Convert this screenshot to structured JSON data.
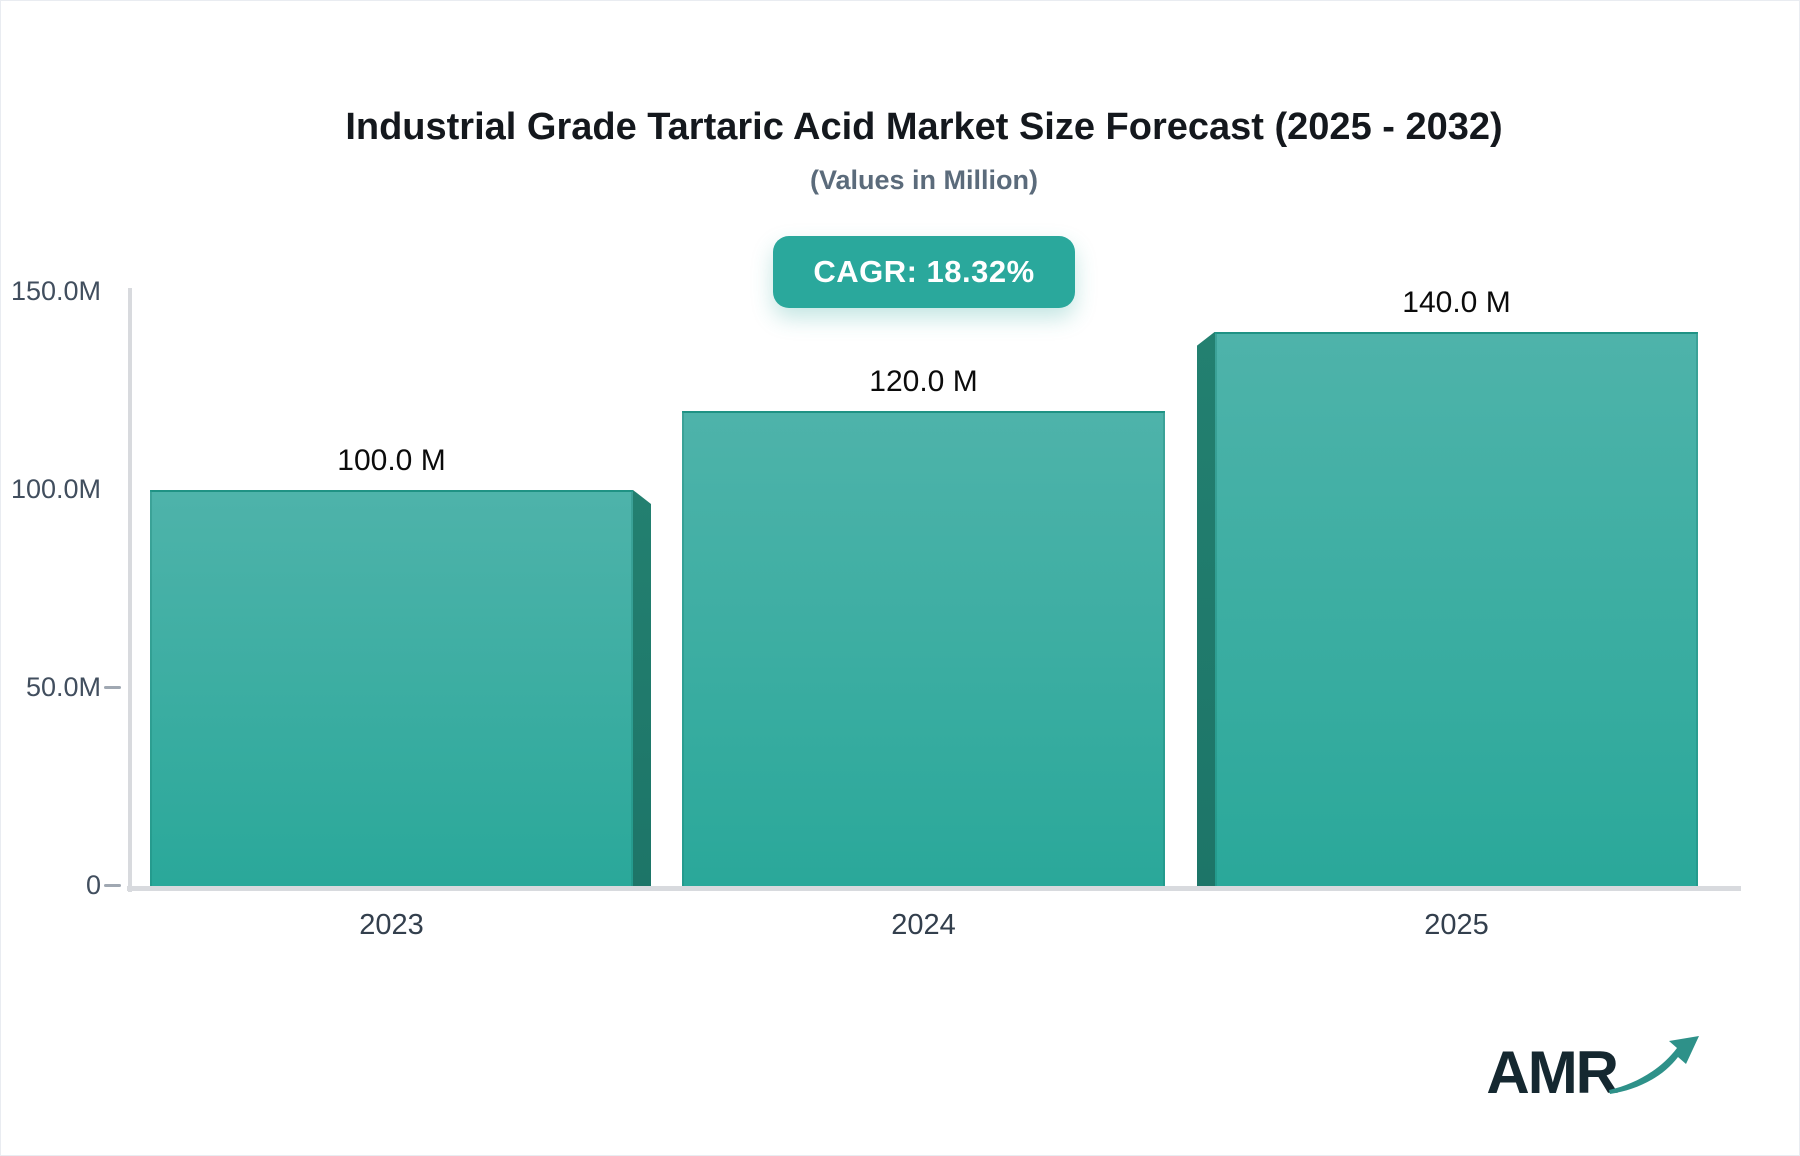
{
  "header": {
    "title": "Industrial Grade Tartaric Acid Market Size Forecast (2025 - 2032)",
    "subtitle": "(Values in Million)"
  },
  "badge": {
    "label": "CAGR: 18.32%",
    "bg_color": "#2aa89c",
    "text_color": "#ffffff"
  },
  "logo": {
    "text": "AMR",
    "arrow_icon": "growth-arrow-icon",
    "text_color": "#152830",
    "arrow_color": "#2e9189"
  },
  "colors": {
    "bar_top": "#4eb3aa",
    "bar_bottom": "#2aa89a",
    "bar_side_shadow_top": "#238070",
    "bar_side_shadow_bottom": "#1d7568",
    "axis_line": "#d8dade",
    "tick_label": "#414e5e",
    "category_label": "#333f4d",
    "value_label": "#0b0b0b"
  },
  "chart_data": {
    "type": "bar",
    "title": "Industrial Grade Tartaric Acid Market Size Forecast (2025 - 2032)",
    "subtitle": "(Values in Million)",
    "unit": "Million",
    "cagr_percent": 18.32,
    "categories": [
      "2023",
      "2024",
      "2025"
    ],
    "values": [
      100.0,
      120.0,
      140.0
    ],
    "value_labels": [
      "100.0 M",
      "120.0 M",
      "140.0 M"
    ],
    "ylim": [
      0,
      150
    ],
    "y_ticks": [
      {
        "label": "150.0M",
        "value": 150,
        "dash": false
      },
      {
        "label": "100.0M",
        "value": 100,
        "dash": false
      },
      {
        "label": "50.0M",
        "value": 50,
        "dash": true
      },
      {
        "label": "0",
        "value": 0,
        "dash": true
      }
    ],
    "grid": false,
    "legend": null,
    "bar_3d_side": [
      "right",
      "none",
      "left"
    ]
  }
}
